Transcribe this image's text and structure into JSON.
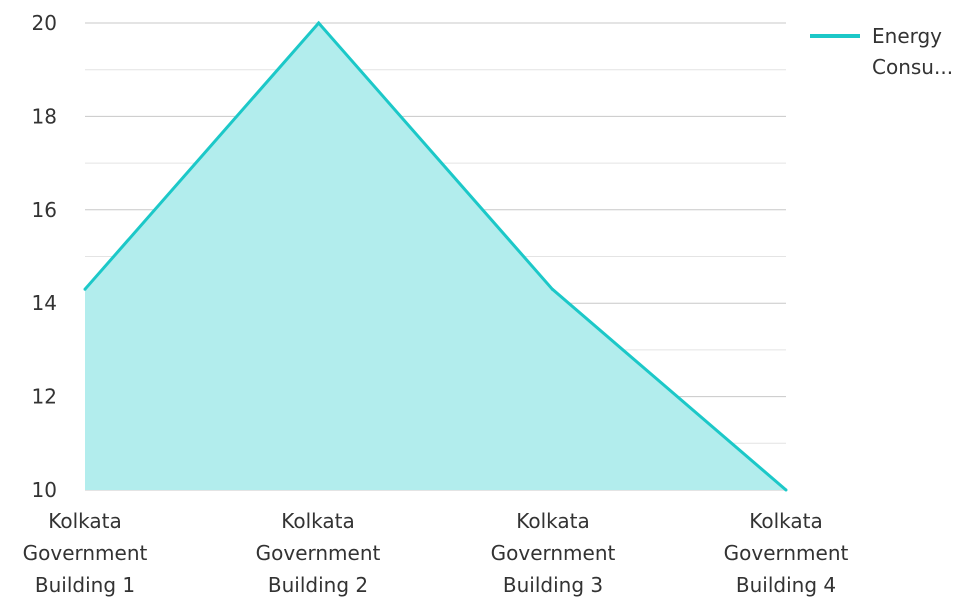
{
  "chart_data": {
    "type": "area",
    "categories": [
      "Kolkata Government Building 1",
      "Kolkata Government Building 2",
      "Kolkata Government Building 3",
      "Kolkata Government Building 4"
    ],
    "series": [
      {
        "name": "Energy Consu...",
        "values": [
          14.3,
          20,
          14.3,
          10
        ]
      }
    ],
    "ylim": [
      10,
      20
    ],
    "yticks": [
      10,
      12,
      14,
      16,
      18,
      20
    ],
    "grid": true,
    "legend_position": "top-right",
    "colors": {
      "line": "#1cc8c8",
      "fill": "#b2eded",
      "grid_major": "#c8c8c8",
      "grid_minor": "#e4e4e4",
      "text": "#333333"
    }
  }
}
